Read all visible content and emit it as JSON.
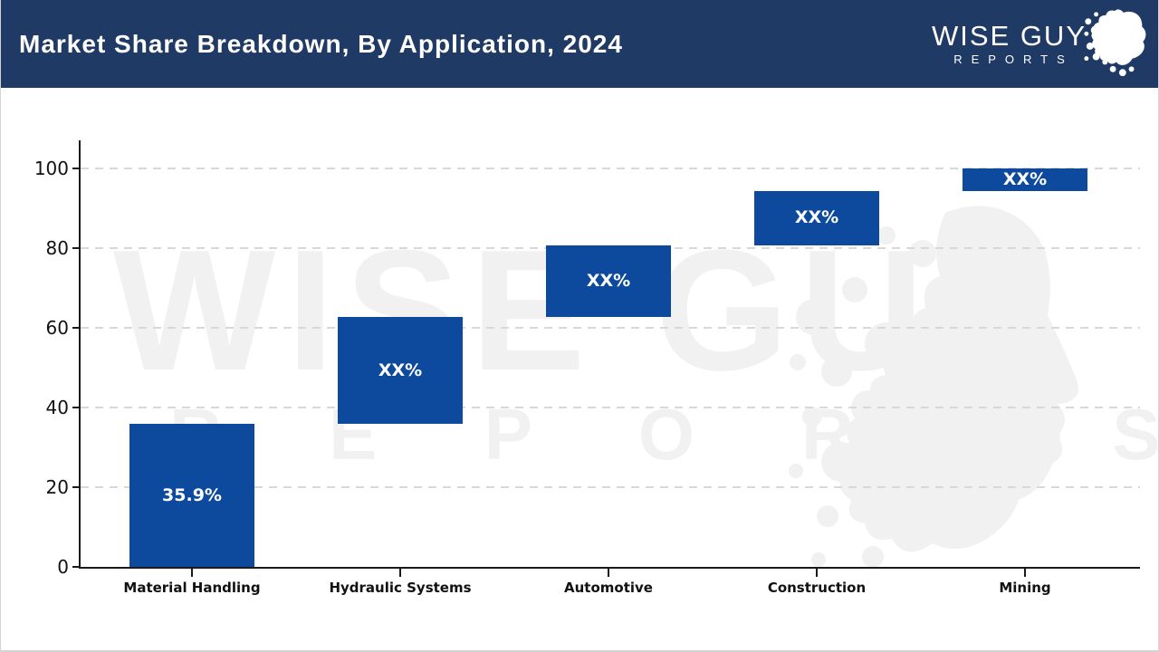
{
  "header": {
    "title": "Market Share Breakdown, By Application, 2024",
    "logo": {
      "name_line": "WISE GUY",
      "sub_line": "REPORTS"
    }
  },
  "watermark": {
    "line1": "WISE GUY",
    "line2": "R E P O R T S"
  },
  "colors": {
    "header_bg": "#203a66",
    "bar_fill": "#0d4a9e",
    "bar_label": "#ffffff",
    "grid_line": "#d8d8d8",
    "axis_line": "#1a1a1a",
    "tick_label": "#111111",
    "watermark": "#f1f1f2"
  },
  "chart_data": {
    "type": "bar",
    "subtype": "waterfall",
    "title": "Market Share Breakdown, By Application, 2024",
    "categories": [
      "Material Handling",
      "Hydraulic Systems",
      "Automotive",
      "Construction",
      "Mining"
    ],
    "segments": [
      {
        "category": "Material Handling",
        "start": 0,
        "end": 35.9,
        "label": "35.9%"
      },
      {
        "category": "Hydraulic Systems",
        "start": 35.9,
        "end": 62.7,
        "label": "XX%"
      },
      {
        "category": "Automotive",
        "start": 62.7,
        "end": 80.7,
        "label": "XX%"
      },
      {
        "category": "Construction",
        "start": 80.7,
        "end": 94.3,
        "label": "XX%"
      },
      {
        "category": "Mining",
        "start": 94.3,
        "end": 100,
        "label": "XX%"
      }
    ],
    "ylim": [
      0,
      100
    ],
    "yticks": [
      0,
      20,
      40,
      60,
      80,
      100
    ],
    "grid": "horizontal-dashed",
    "legend": null
  }
}
